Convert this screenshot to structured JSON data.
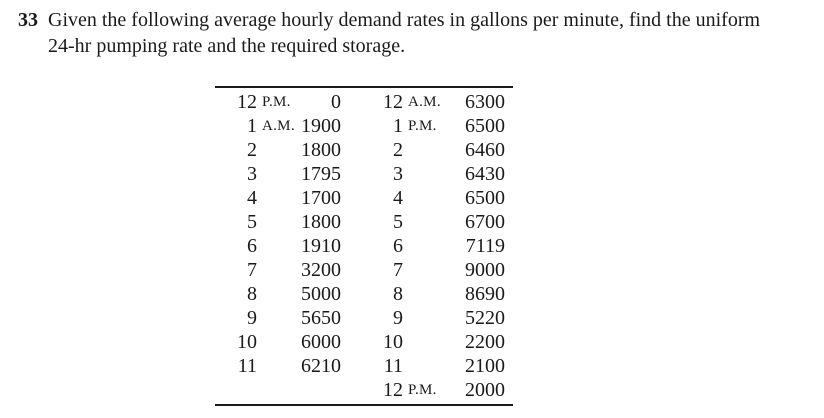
{
  "problem": {
    "number": "33",
    "line1": "Given the following average hourly demand rates in gallons per minute, find the uniform",
    "line2": "24-hr pumping rate and the required storage."
  },
  "table": {
    "rows": [
      {
        "h1": "12",
        "m1": "P.M.",
        "v1": "0",
        "h2": "12",
        "m2": "A.M.",
        "v2": "6300"
      },
      {
        "h1": "1",
        "m1": "A.M.",
        "v1": "1900",
        "h2": "1",
        "m2": "P.M.",
        "v2": "6500"
      },
      {
        "h1": "2",
        "m1": "",
        "v1": "1800",
        "h2": "2",
        "m2": "",
        "v2": "6460"
      },
      {
        "h1": "3",
        "m1": "",
        "v1": "1795",
        "h2": "3",
        "m2": "",
        "v2": "6430"
      },
      {
        "h1": "4",
        "m1": "",
        "v1": "1700",
        "h2": "4",
        "m2": "",
        "v2": "6500"
      },
      {
        "h1": "5",
        "m1": "",
        "v1": "1800",
        "h2": "5",
        "m2": "",
        "v2": "6700"
      },
      {
        "h1": "6",
        "m1": "",
        "v1": "1910",
        "h2": "6",
        "m2": "",
        "v2": "7119"
      },
      {
        "h1": "7",
        "m1": "",
        "v1": "3200",
        "h2": "7",
        "m2": "",
        "v2": "9000"
      },
      {
        "h1": "8",
        "m1": "",
        "v1": "5000",
        "h2": "8",
        "m2": "",
        "v2": "8690"
      },
      {
        "h1": "9",
        "m1": "",
        "v1": "5650",
        "h2": "9",
        "m2": "",
        "v2": "5220"
      },
      {
        "h1": "10",
        "m1": "",
        "v1": "6000",
        "h2": "10",
        "m2": "",
        "v2": "2200"
      },
      {
        "h1": "11",
        "m1": "",
        "v1": "6210",
        "h2": "11",
        "m2": "",
        "v2": "2100"
      },
      {
        "h1": "",
        "m1": "",
        "v1": "",
        "h2": "12",
        "m2": "P.M.",
        "v2": "2000"
      }
    ]
  }
}
